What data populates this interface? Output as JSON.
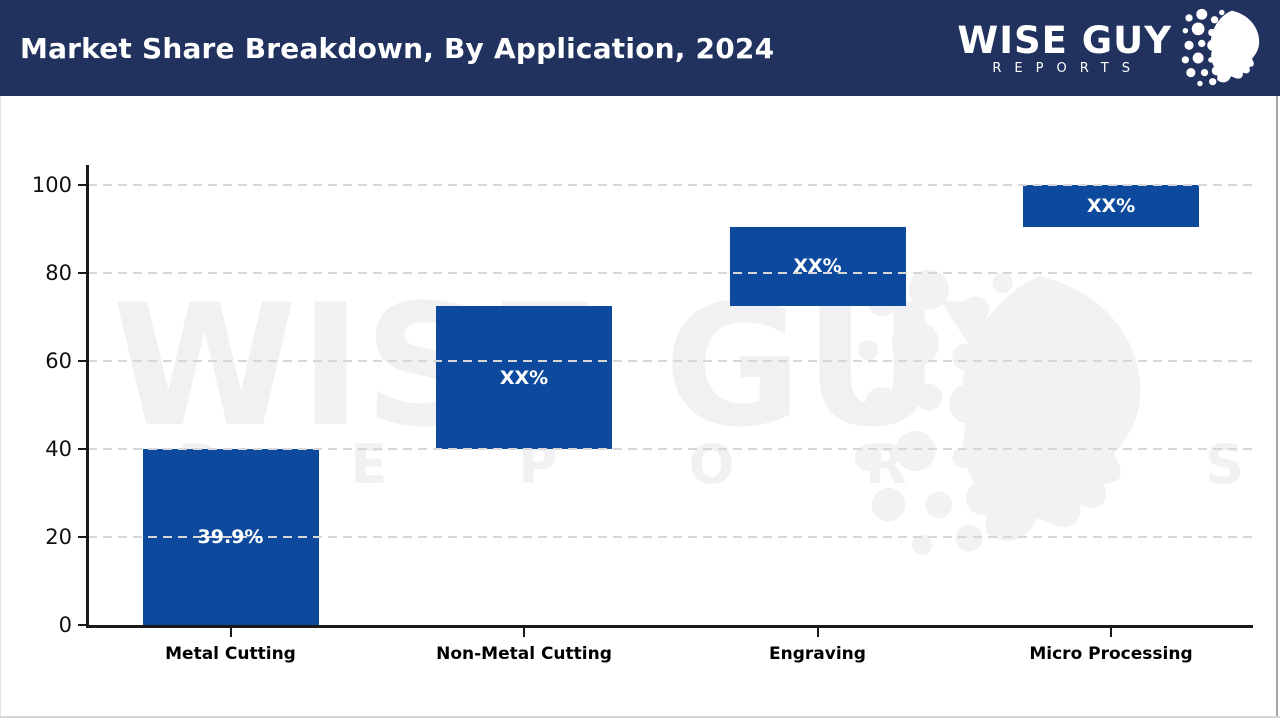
{
  "header": {
    "title": "Market Share Breakdown, By Application, 2024",
    "bg_color": "#21325f",
    "logo": {
      "line1": "WISE GUY",
      "line2": "REPORTS"
    }
  },
  "watermark": {
    "big_text": "WISE GUY",
    "small_text": "REPORTS"
  },
  "chart_data": {
    "type": "bar",
    "subtype": "waterfall",
    "title": "Market Share Breakdown, By Application, 2024",
    "categories": [
      "Metal Cutting",
      "Non-Metal Cutting",
      "Engraving",
      "Micro Processing"
    ],
    "segments": [
      {
        "label": "Metal Cutting",
        "start": 0,
        "end": 39.9,
        "display": "39.9%"
      },
      {
        "label": "Non-Metal Cutting",
        "start": 39.9,
        "end": 72.6,
        "display": "XX%"
      },
      {
        "label": "Engraving",
        "start": 72.6,
        "end": 90.4,
        "display": "XX%"
      },
      {
        "label": "Micro Processing",
        "start": 90.4,
        "end": 100,
        "display": "XX%"
      }
    ],
    "ylim": [
      0,
      100
    ],
    "yticks": [
      0,
      20,
      40,
      60,
      80,
      100
    ],
    "xlabel": "",
    "ylabel": "",
    "bar_color": "#0d4a9e",
    "grid": "horizontal-dashed",
    "gridline_color": "#d7d7d7",
    "legend": "none"
  }
}
